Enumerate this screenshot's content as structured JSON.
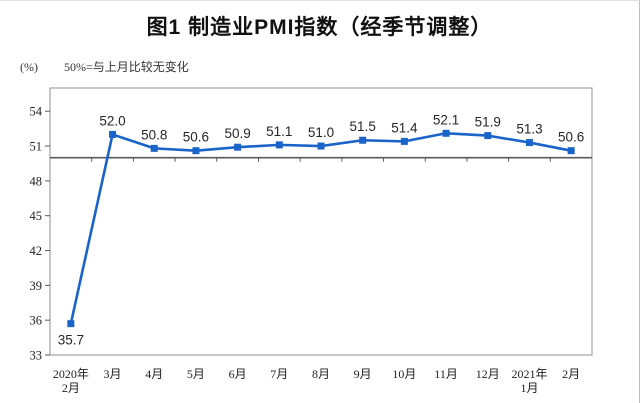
{
  "chart_data": {
    "type": "line",
    "title": "图1  制造业PMI指数（经季节调整）",
    "unit_label": "(%)",
    "note": "50%=与上月比较无变化",
    "categories": [
      "2020年\n2月",
      "3月",
      "4月",
      "5月",
      "6月",
      "7月",
      "8月",
      "9月",
      "10月",
      "11月",
      "12月",
      "2021年\n1月",
      "2月"
    ],
    "series": [
      {
        "name": "制造业PMI指数",
        "values": [
          35.7,
          52.0,
          50.8,
          50.6,
          50.9,
          51.1,
          51.0,
          51.5,
          51.4,
          52.1,
          51.9,
          51.3,
          50.6
        ]
      }
    ],
    "ylabel": "",
    "xlabel": "",
    "ylim": [
      33,
      56
    ],
    "yticks": [
      33,
      36,
      39,
      42,
      45,
      48,
      51,
      54
    ],
    "reference_line": 50,
    "grid": false,
    "legend_position": "none",
    "data_labels": true,
    "colors": {
      "line": "#1a63c8",
      "marker": "#1a63c8",
      "axis": "#5a5a5a",
      "plot_border": "#8f8f8f",
      "label_text": "#262626",
      "tick_text": "#222222"
    }
  }
}
